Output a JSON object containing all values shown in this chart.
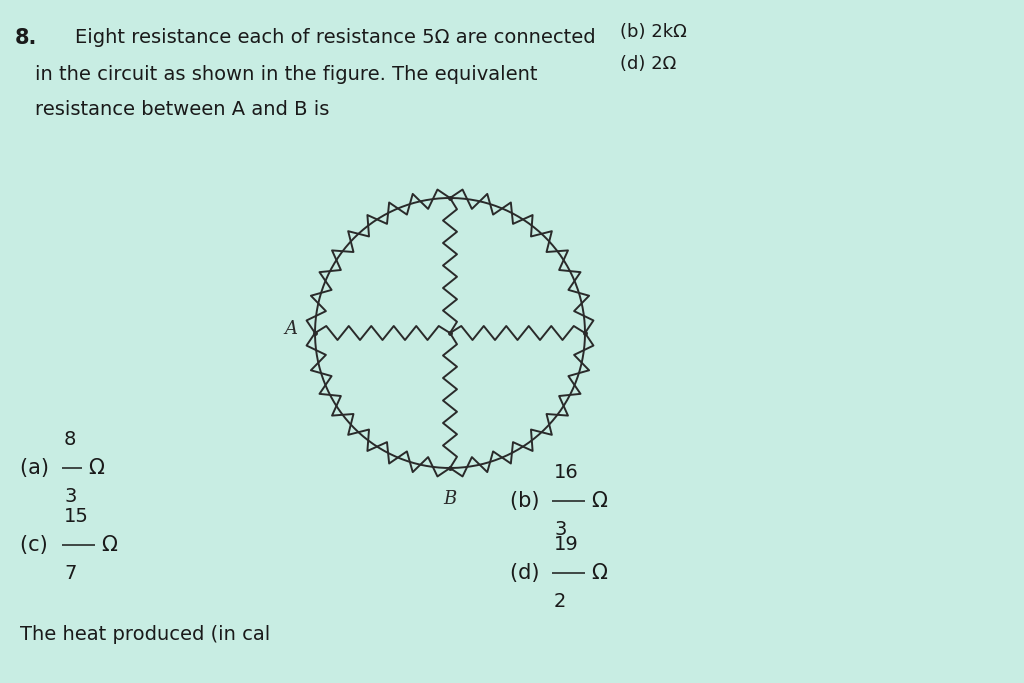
{
  "bg_color": "#c8ede3",
  "text_color": "#1a1a1a",
  "title_number": "8.",
  "top_right_text1": "(b) 2kΩ",
  "top_right_text2": "(d) 2Ω",
  "main_text_line1": "Eight resistance each of resistance 5Ω are connected",
  "main_text_line2": "in the circuit as shown in the figure. The equivalent",
  "main_text_line3": "resistance between A and B is",
  "option_a_num": "8",
  "option_a_den": "3",
  "option_b_num": "16",
  "option_b_den": "3",
  "option_c_num": "15",
  "option_c_den": "7",
  "option_d_num": "19",
  "option_d_den": "2",
  "bottom_text": "The heat produced (in cal",
  "font_size_main": 14,
  "font_size_options": 15,
  "lc": "#2a2a2a",
  "lw": 1.4
}
